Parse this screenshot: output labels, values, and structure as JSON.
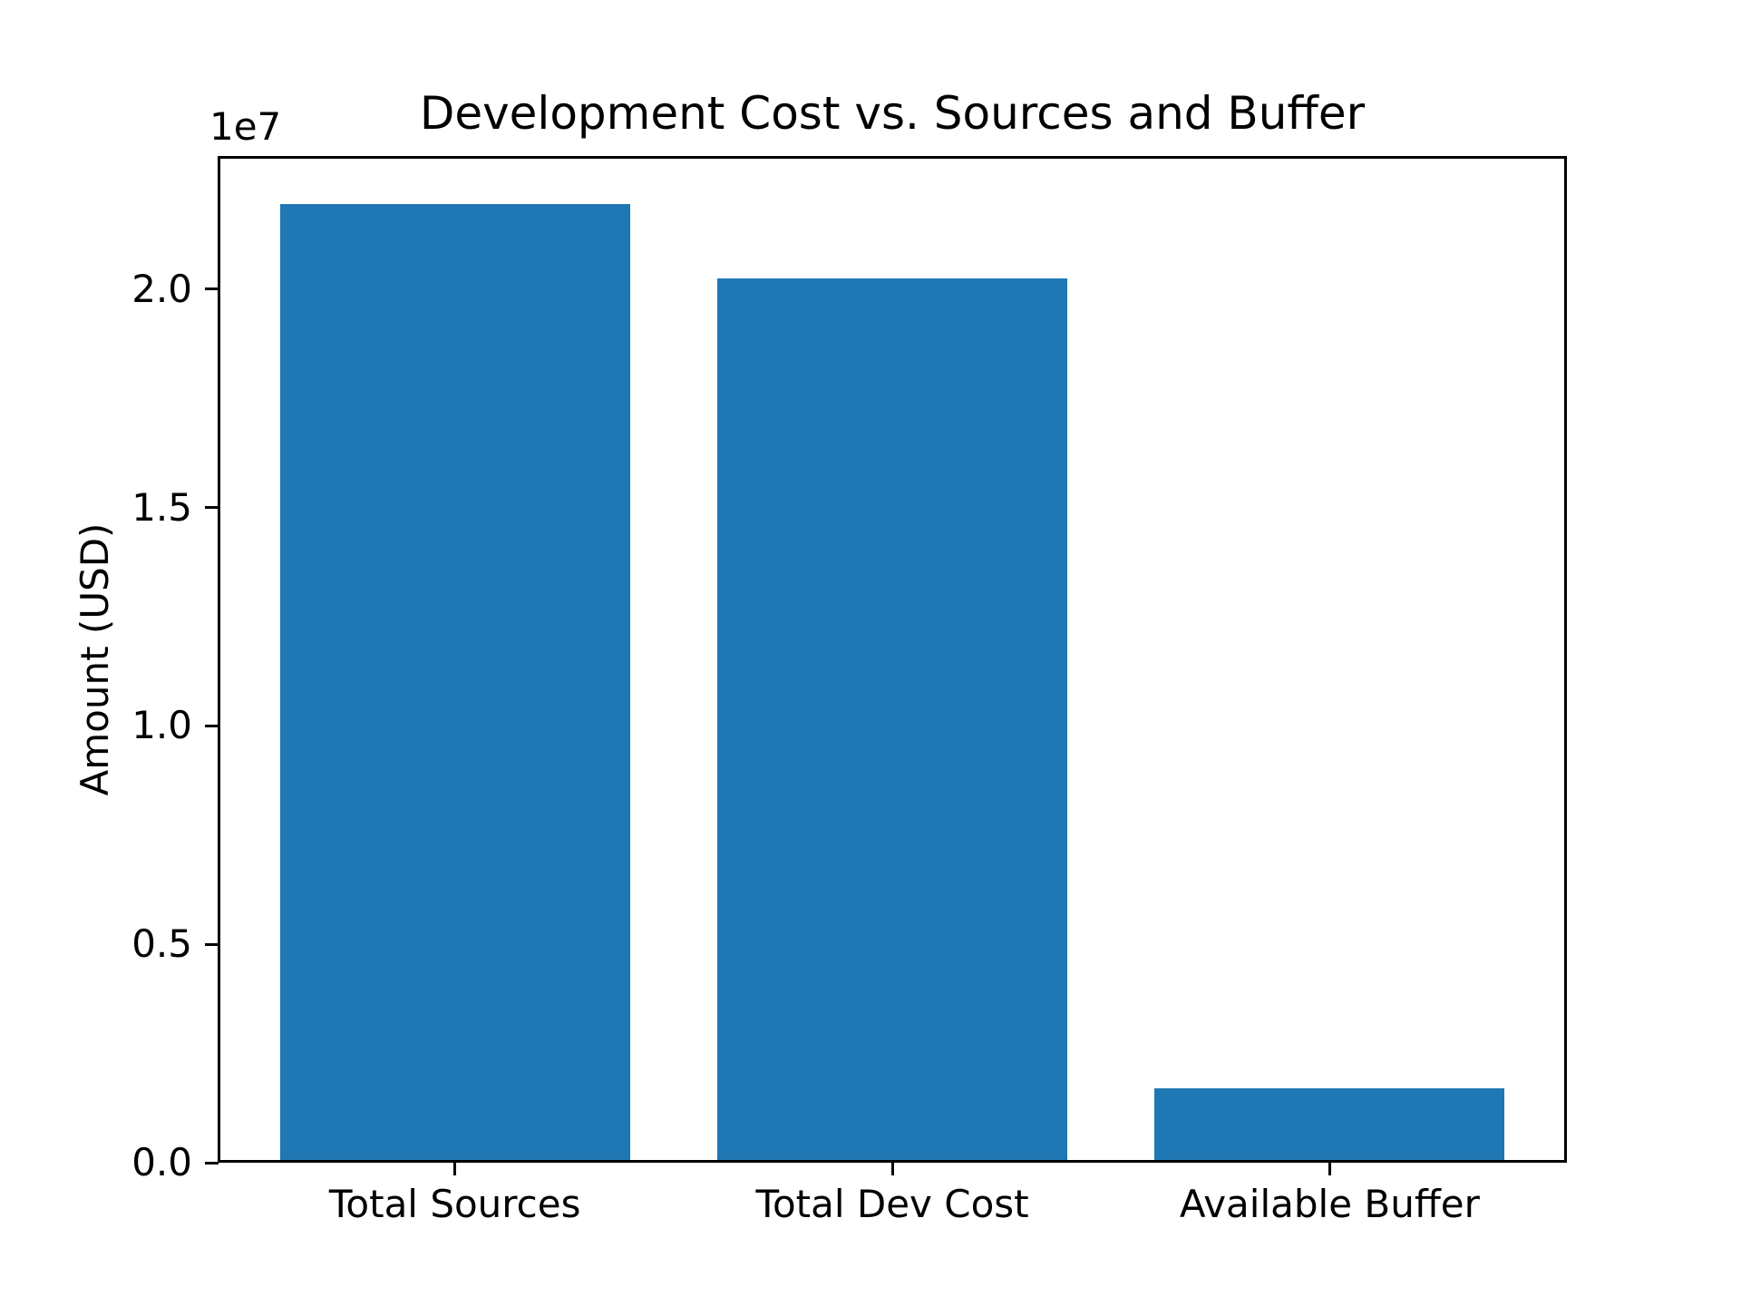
{
  "chart_data": {
    "type": "bar",
    "title": "Development Cost vs. Sources and Buffer",
    "xlabel": "",
    "ylabel": "Amount (USD)",
    "y_offset_label": "1e7",
    "categories": [
      "Total Sources",
      "Total Dev Cost",
      "Available Buffer"
    ],
    "values": [
      21950000,
      20250000,
      1700000
    ],
    "bar_color": "#1f77b4",
    "ylim": [
      0,
      23047500
    ],
    "yticks": [
      {
        "value": 0,
        "label": "0.0"
      },
      {
        "value": 5000000,
        "label": "0.5"
      },
      {
        "value": 10000000,
        "label": "1.0"
      },
      {
        "value": 15000000,
        "label": "1.5"
      },
      {
        "value": 20000000,
        "label": "2.0"
      }
    ],
    "grid": false,
    "legend_position": "none",
    "text_color": "#000000",
    "axis_color": "#000000",
    "background_color": "#ffffff"
  }
}
